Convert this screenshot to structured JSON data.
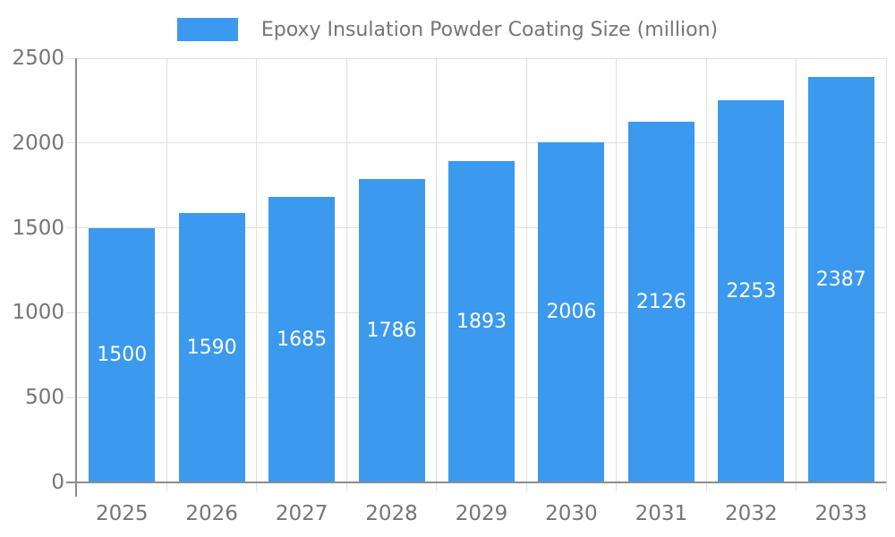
{
  "chart_data": {
    "type": "bar",
    "title": "",
    "legend_position": "top-center",
    "grid": true,
    "categories": [
      "2025",
      "2026",
      "2027",
      "2028",
      "2029",
      "2030",
      "2031",
      "2032",
      "2033"
    ],
    "series": [
      {
        "name": "Epoxy Insulation Powder Coating Size (million)",
        "values": [
          1500,
          1590,
          1685,
          1786,
          1893,
          2006,
          2126,
          2253,
          2387
        ]
      }
    ],
    "xlabel": "",
    "ylabel": "",
    "ylim": [
      0,
      2500
    ],
    "ytick_step": 500,
    "ytick_labels": [
      "0",
      "500",
      "1000",
      "1500",
      "2000",
      "2500"
    ],
    "value_labels_shown": true,
    "colors": {
      "bar": "#3B99EE",
      "bar_value_label": "#FFFFFF",
      "axis_line": "#8C8C8C",
      "gridline": "#E0E0E0",
      "tick_label": "#757575",
      "legend_text": "#757575",
      "background": "#FFFFFF"
    }
  }
}
